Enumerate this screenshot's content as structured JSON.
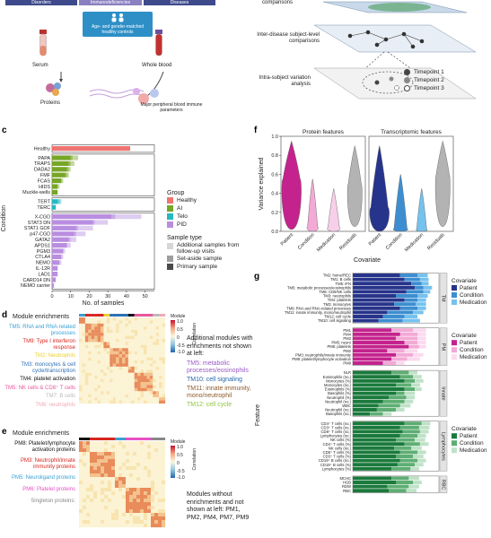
{
  "panel_a": {
    "top_boxes": [
      "Disorders",
      "Immunodeficiencies",
      "Diseases"
    ],
    "control_box": "Age- and gender-matched healthy controls",
    "serum_label": "Serum",
    "whole_blood_label": "Whole blood",
    "proteins_label": "Proteins",
    "immune_label": "Major peripheral blood immune parameters",
    "colors": {
      "box_dark": "#3f4a8c",
      "box_mid": "#8a7fbf",
      "control_box": "#2e8fc7",
      "tube_red": "#b5332f",
      "tube_purple": "#6b4fa0"
    }
  },
  "panel_b": {
    "comparisons_label": "comparisons",
    "inter_label": "Inter-disease subject-level comparisons",
    "intra_label": "Intra-subject variation analysis",
    "timepoints": [
      "Timepoint 1",
      "Timepoint 2",
      "Timepoint 3"
    ]
  },
  "panel_c": {
    "letter": "c",
    "ylabel": "Condition",
    "xlabel": "No. of samples",
    "group_legend_title": "Group",
    "groups": [
      {
        "name": "Healthy",
        "color": "#f07470"
      },
      {
        "name": "AI",
        "color": "#77a627"
      },
      {
        "name": "Telo",
        "color": "#26b7c3"
      },
      {
        "name": "PID",
        "color": "#b98ee0"
      }
    ],
    "sample_legend_title": "Sample type",
    "sample_types": [
      {
        "name": "Additional samples from follow-up visits",
        "color": "#d6d6d6"
      },
      {
        "name": "Set-aside sample",
        "color": "#9e9e9e"
      },
      {
        "name": "Primary sample",
        "color": "#4a4a4a"
      }
    ]
  },
  "chart_data": [
    {
      "type": "bar",
      "orientation": "horizontal",
      "xlabel": "No. of samples",
      "ylabel": "Condition",
      "xlim": [
        0,
        55
      ],
      "xticks": [
        0,
        10,
        20,
        30,
        40,
        50
      ],
      "categories": [
        "Healthy",
        "PAPA",
        "TRAPS",
        "DADA2",
        "FMF",
        "FCAS",
        "HIDS",
        "Muckle-wells",
        "TERT",
        "TERC",
        "X-CGD",
        "STAT3 DN",
        "STAT1 GOF",
        "p47-CGD",
        "GATA2",
        "APDS1",
        "PGM3",
        "CTLA4",
        "NEMO",
        "IL-12R",
        "LAD1",
        "CARD14 DN",
        "NEMO carrier"
      ],
      "group_of_category": [
        "Healthy",
        "AI",
        "AI",
        "AI",
        "AI",
        "AI",
        "AI",
        "AI",
        "Telo",
        "Telo",
        "PID",
        "PID",
        "PID",
        "PID",
        "PID",
        "PID",
        "PID",
        "PID",
        "PID",
        "PID",
        "PID",
        "PID",
        "PID"
      ],
      "series": [
        {
          "name": "Primary sample",
          "values": [
            42,
            10,
            9,
            8,
            7,
            5,
            3,
            3,
            3,
            2,
            32,
            22,
            13,
            12,
            9,
            8,
            6,
            5,
            4,
            3,
            3,
            2,
            1
          ]
        },
        {
          "name": "Set-aside sample",
          "values": [
            0,
            1,
            1,
            1,
            1,
            0,
            0,
            0,
            1,
            0,
            2,
            1,
            1,
            1,
            1,
            0,
            0,
            0,
            0,
            0,
            0,
            0,
            0
          ]
        },
        {
          "name": "Additional samples from follow-up visits",
          "values": [
            0,
            3,
            2,
            1,
            1,
            1,
            1,
            0,
            1,
            0,
            14,
            7,
            8,
            5,
            3,
            2,
            1,
            1,
            1,
            0,
            0,
            0,
            0
          ]
        }
      ]
    },
    {
      "type": "violin",
      "ylabel": "Variance explained",
      "xlabel": "Covariate",
      "ylim": [
        0,
        1
      ],
      "yticks": [
        0,
        0.2,
        0.4,
        0.6,
        0.8,
        1.0
      ],
      "facets": [
        "Protein features",
        "Transcriptomic features"
      ],
      "categories": [
        "Patient",
        "Condition",
        "Medication",
        "Residuals"
      ],
      "series": [
        {
          "name": "Protein features",
          "colors": [
            "#c4238d",
            "#f2a9d6",
            "#f8cfe8",
            "#b3b3b3"
          ]
        },
        {
          "name": "Transcriptomic features",
          "colors": [
            "#27348b",
            "#3d8ed1",
            "#76c2ee",
            "#b3b3b3"
          ]
        }
      ]
    }
  ],
  "panel_d": {
    "letter": "d",
    "title": "Module enrichments",
    "colorbar_title": "Module",
    "colorbar_ticks": [
      "1.0",
      "0.5",
      "0",
      "-0.5",
      "-1.0"
    ],
    "colorbar_label": "Correlation",
    "modules": [
      {
        "label": "TM5: RNA and RNA-related processes",
        "color": "#3a9fd1"
      },
      {
        "label": "TM9: Type I interferon response",
        "color": "#d7261e"
      },
      {
        "label": "TM2: Neutrophils",
        "color": "#e9d12a"
      },
      {
        "label": "TM3: monocytes & cell cycle/transcription",
        "color": "#2c6fb5"
      },
      {
        "label": "TM4: platelet activation",
        "color": "#111111"
      },
      {
        "label": "TM5: NK cells & CD8⁺ T cells",
        "color": "#e8569a"
      },
      {
        "label": "TM7: B cells",
        "color": "#b9b9b9"
      },
      {
        "label": "TM6: neutrophils",
        "color": "#f3a8b5"
      }
    ],
    "extra_title": "Additional modules with enrichments not shown at left:",
    "extra_modules": [
      {
        "label": "TM5: metabolic processes/eosinophils",
        "color": "#9b59c8"
      },
      {
        "label": "TM10: cell signaling",
        "color": "#2467a8"
      },
      {
        "label": "TM11: innate immunity, mono/neutrophil",
        "color": "#8b5a2b"
      },
      {
        "label": "TM12: cell cycle",
        "color": "#8fc43a"
      }
    ]
  },
  "panel_e": {
    "letter": "e",
    "title": "Module enrichments",
    "colorbar_title": "Module",
    "colorbar_ticks": [
      "1.0",
      "0.5",
      "0",
      "-0.5",
      "-1.0"
    ],
    "colorbar_label": "Correlation",
    "modules": [
      {
        "label": "PM8: Platelet/lymphocyte activation proteins",
        "color": "#111111"
      },
      {
        "label": "PM3: Neutrophil/innate immunity proteins",
        "color": "#d7261e"
      },
      {
        "label": "PM5: Neuroligand proteins",
        "color": "#3a9fd1"
      },
      {
        "label": "PM6: Platelet proteins",
        "color": "#e84fc4"
      },
      {
        "label": "Singleton proteins:",
        "color": "#888888"
      }
    ],
    "extra_title": "Modules without enrichments and not shown at left: PM1, PM2, PM4, PM7, PM9"
  },
  "panel_f": {
    "letter": "f",
    "ylabel": "Variance explained",
    "xlabel": "Covariate",
    "facet_titles": [
      "Protein features",
      "Transcriptomic features"
    ]
  },
  "panel_g": {
    "letter": "g",
    "ylabel": "Feature",
    "blocks": [
      {
        "name": "TM",
        "features": [
          "TM2: home/REC",
          "TM1: B cells",
          "TM5: IFN",
          "TM5: metabolic processes/eosinophils",
          "TM5: CD8/NK cells",
          "TM3: neutrophils",
          "TM4: platelets",
          "TM3: monocytes",
          "TM9: RNA and RNA-related processes",
          "TM11: innate immunity, mono/neutrophil",
          "TM12: cell cycle",
          "TM10: cell signaling"
        ],
        "patient": [
          0.55,
          0.6,
          0.68,
          0.72,
          0.62,
          0.5,
          0.6,
          0.48,
          0.55,
          0.4,
          0.35,
          0.3
        ],
        "condition": [
          0.2,
          0.18,
          0.12,
          0.1,
          0.2,
          0.25,
          0.15,
          0.25,
          0.2,
          0.3,
          0.25,
          0.28
        ],
        "medication": [
          0.12,
          0.1,
          0.08,
          0.1,
          0.08,
          0.12,
          0.1,
          0.12,
          0.1,
          0.12,
          0.15,
          0.2
        ],
        "legend_title": "Covariate",
        "legend": [
          "Patient",
          "Condition",
          "Medication"
        ],
        "colors": [
          "#27348b",
          "#3d8ed1",
          "#76c2ee"
        ]
      },
      {
        "name": "PM",
        "features": [
          "PM1",
          "PM4",
          "PM3",
          "PM5: neuro",
          "PM6: platelets",
          "PM2",
          "PM3: neutrophils/innate immunity",
          "PM8: platelet/lymphocyte activation",
          "PM9"
        ],
        "patient": [
          0.45,
          0.55,
          0.5,
          0.6,
          0.65,
          0.4,
          0.5,
          0.45,
          0.35
        ],
        "condition": [
          0.25,
          0.2,
          0.25,
          0.15,
          0.12,
          0.2,
          0.2,
          0.18,
          0.15
        ],
        "medication": [
          0.15,
          0.1,
          0.1,
          0.1,
          0.08,
          0.15,
          0.12,
          0.15,
          0.1
        ],
        "legend_title": "Covariate",
        "legend": [
          "Patient",
          "Condition",
          "Medication"
        ],
        "colors": [
          "#c4238d",
          "#f2a9d6",
          "#fbd9ee"
        ]
      },
      {
        "name": "Innate",
        "features": [
          "NLR",
          "Eosinophils (no.)",
          "Monocytes (%)",
          "Monocytes (no.)",
          "Eosinophils (%)",
          "Basophils (%)",
          "Neutrophil (%)",
          "Neutrophil (no.)",
          "WBC",
          "Neutrophil (no.)",
          "Basophils (no.)"
        ],
        "patient": [
          0.45,
          0.55,
          0.6,
          0.5,
          0.6,
          0.5,
          0.42,
          0.35,
          0.3,
          0.28,
          0.2
        ],
        "condition": [
          0.2,
          0.15,
          0.12,
          0.18,
          0.12,
          0.1,
          0.2,
          0.25,
          0.25,
          0.22,
          0.15
        ],
        "medication": [
          0.1,
          0.1,
          0.1,
          0.1,
          0.08,
          0.12,
          0.1,
          0.1,
          0.12,
          0.1,
          0.1
        ],
        "legend_title": "",
        "legend": [],
        "colors": [
          "#1a7a3c",
          "#5eae73",
          "#bfe2c7"
        ]
      },
      {
        "name": "Lymphocytes",
        "features": [
          "CD4⁺ T cells (no.)",
          "CD3⁺ T cells (no.)",
          "CD8⁺ T cells (no.)",
          "Lymphocytes (no.)",
          "NK cells (%)",
          "CD4⁺ T cells (%)",
          "NK cells (no.)",
          "CD8⁺ T cells (%)",
          "CD3⁺ T cells (%)",
          "CD19⁺ B cells (no.)",
          "CD19⁺ B cells (%)",
          "Lymphocytes (%)"
        ],
        "patient": [
          0.6,
          0.55,
          0.58,
          0.55,
          0.5,
          0.6,
          0.48,
          0.55,
          0.5,
          0.55,
          0.52,
          0.45
        ],
        "condition": [
          0.2,
          0.22,
          0.2,
          0.2,
          0.22,
          0.18,
          0.2,
          0.2,
          0.2,
          0.2,
          0.2,
          0.22
        ],
        "medication": [
          0.1,
          0.12,
          0.1,
          0.1,
          0.12,
          0.1,
          0.12,
          0.1,
          0.12,
          0.1,
          0.1,
          0.1
        ],
        "legend_title": "Covariate",
        "legend": [
          "Patient",
          "Condition",
          "Medication"
        ],
        "colors": [
          "#1a7a3c",
          "#5eae73",
          "#bfe2c7"
        ]
      },
      {
        "name": "RBC",
        "features": [
          "MCHC",
          "HGB",
          "RDW",
          "RBC"
        ],
        "patient": [
          0.45,
          0.5,
          0.4,
          0.42
        ],
        "condition": [
          0.2,
          0.2,
          0.25,
          0.2
        ],
        "medication": [
          0.12,
          0.1,
          0.12,
          0.12
        ],
        "legend_title": "",
        "legend": [],
        "colors": [
          "#1a7a3c",
          "#5eae73",
          "#bfe2c7"
        ]
      }
    ]
  }
}
